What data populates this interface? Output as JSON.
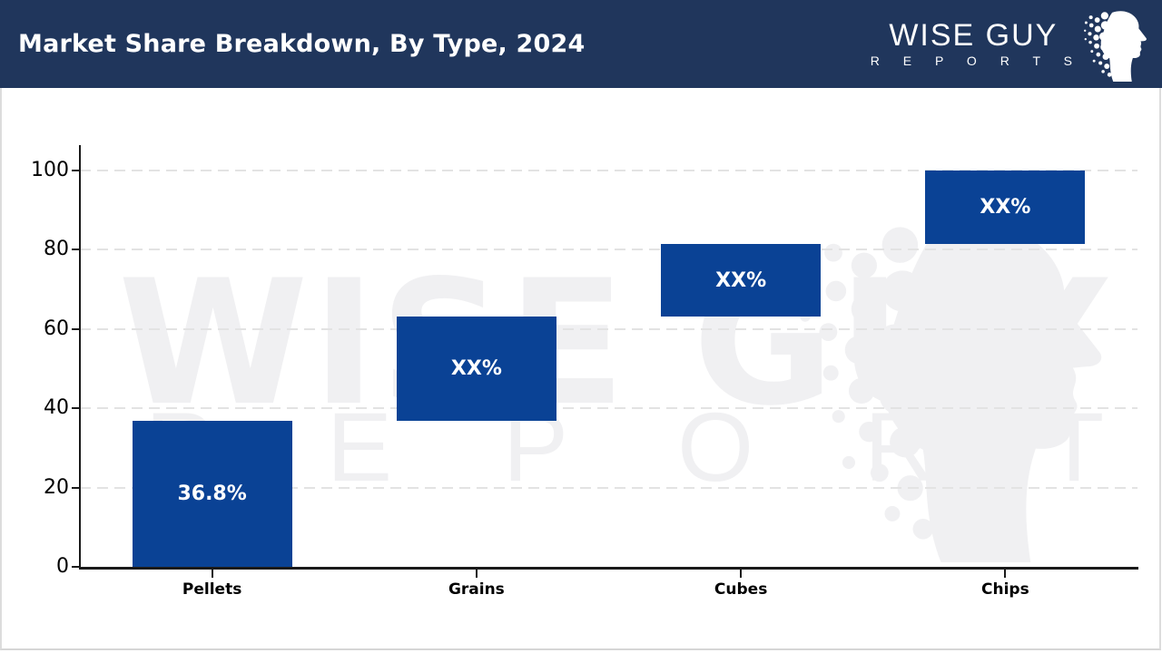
{
  "header": {
    "title": "Market Share Breakdown, By Type, 2024",
    "bg_color": "#20365c",
    "logo": {
      "line1": "WISE GUY",
      "line2": "REPORTS"
    }
  },
  "watermark": {
    "line1": "WISE GUY",
    "line2": "REPORTS"
  },
  "chart_data": {
    "type": "bar",
    "subtype": "waterfall",
    "title": "Market Share Breakdown, By Type, 2024",
    "categories": [
      "Pellets",
      "Grains",
      "Cubes",
      "Chips"
    ],
    "series": [
      {
        "name": "Market Share %",
        "segments": [
          {
            "category": "Pellets",
            "start": 0,
            "end": 36.8,
            "label": "36.8%"
          },
          {
            "category": "Grains",
            "start": 36.8,
            "end": 63.0,
            "label": "XX%"
          },
          {
            "category": "Cubes",
            "start": 63.0,
            "end": 81.4,
            "label": "XX%"
          },
          {
            "category": "Chips",
            "start": 81.4,
            "end": 100,
            "label": "XX%"
          }
        ]
      }
    ],
    "yticks": [
      0,
      20,
      40,
      60,
      80,
      100
    ],
    "ylim": [
      0,
      106
    ],
    "xlabel": "",
    "ylabel": "",
    "grid": "horizontal-dashed",
    "legend": "none",
    "bar_color": "#0a4295",
    "grid_color": "#e3e3e3",
    "label_color": "#ffffff"
  }
}
